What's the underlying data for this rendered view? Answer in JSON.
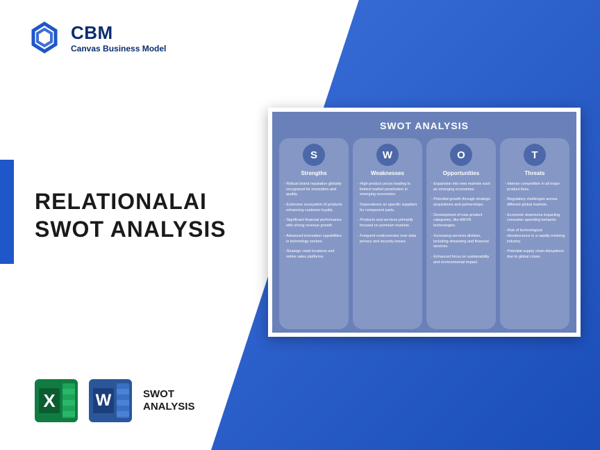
{
  "logo": {
    "brand": "CBM",
    "tagline": "Canvas Business Model",
    "color": "#0a2d6e",
    "mark_color": "#1f56c9"
  },
  "title": {
    "line1": "RELATIONALAI",
    "line2": "SWOT ANALYSIS"
  },
  "bottom": {
    "label_line1": "SWOT",
    "label_line2": "ANALYSIS"
  },
  "swot": {
    "title": "SWOT ANALYSIS",
    "card_bg": "#6a80b8",
    "col_bg": "#8597c5",
    "circle_bg": "#4d68a8",
    "columns": [
      {
        "letter": "S",
        "heading": "Strengths",
        "items": [
          "Robust brand reputation globally recognized for innovation and quality.",
          "Extensive ecosystem of products enhancing customer loyalty.",
          "Significant financial performance with strong revenue growth.",
          "Advanced innovation capabilities in technology sectors.",
          "Strategic retail locations and online sales platforms."
        ]
      },
      {
        "letter": "W",
        "heading": "Weaknesses",
        "items": [
          "High product prices leading to limited market penetration in emerging economies.",
          "Dependence on specific suppliers for component parts.",
          "Products and services primarily focused on premium markets.",
          "Frequent controversies over data privacy and security issues."
        ]
      },
      {
        "letter": "O",
        "heading": "Opportunities",
        "items": [
          "Expansion into new markets such as emerging economies.",
          "Potential growth through strategic acquisitions and partnerships.",
          "Development of new product categories, like AR/VR technologies.",
          "Increasing services division, including streaming and financial services.",
          "Enhanced focus on sustainability and environmental impact."
        ]
      },
      {
        "letter": "T",
        "heading": "Threats",
        "items": [
          "Intense competition in all major product lines.",
          "Regulatory challenges across different global markets.",
          "Economic downturns impacting consumer spending behavior.",
          "Risk of technological obsolescence in a rapidly evolving industry.",
          "Potential supply chain disruptions due to global crises."
        ]
      }
    ]
  }
}
